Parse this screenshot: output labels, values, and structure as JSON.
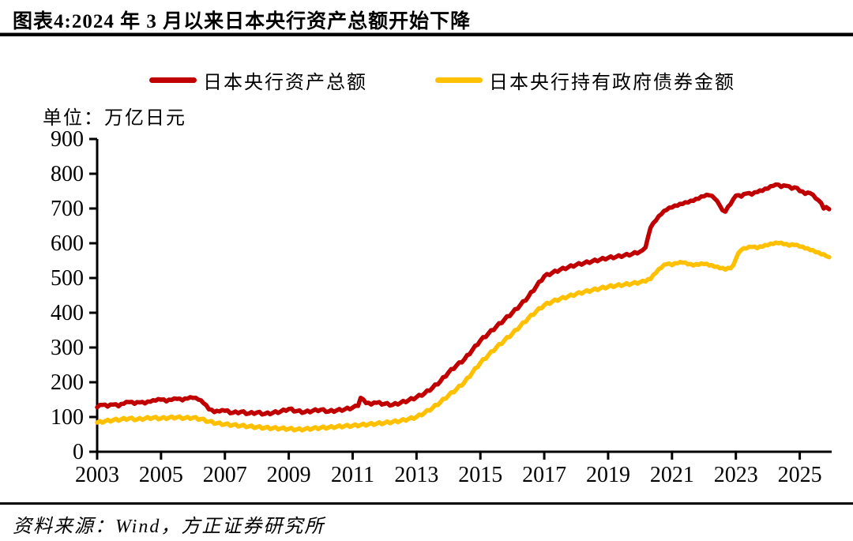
{
  "header": {
    "title": "图表4:2024 年 3 月以来日本央行资产总额开始下降"
  },
  "unit_label": "单位：万亿日元",
  "legend": {
    "items": [
      {
        "label": "日本央行资产总额",
        "color": "#C00000"
      },
      {
        "label": "日本央行持有政府债券金额",
        "color": "#FFC000"
      }
    ]
  },
  "footer": {
    "source": "资料来源：Wind，方正证券研究所"
  },
  "chart_data": {
    "type": "line",
    "title": "图表4:2024 年 3 月以来日本央行资产总额开始下降",
    "xlabel": "",
    "ylabel": "单位：万亿日元",
    "unit": "万亿日元",
    "grid": false,
    "legend_position": "top",
    "ylim": [
      0,
      900
    ],
    "yticks": [
      0,
      100,
      200,
      300,
      400,
      500,
      600,
      700,
      800,
      900
    ],
    "x_range": [
      2003,
      2026
    ],
    "xtick_values": [
      2003,
      2005,
      2007,
      2009,
      2011,
      2013,
      2015,
      2017,
      2019,
      2021,
      2023,
      2025
    ],
    "xtick_labels": [
      "2003",
      "2005",
      "2007",
      "2009",
      "2011",
      "2013",
      "2015",
      "2017",
      "2019",
      "2021",
      "2023",
      "2025"
    ],
    "series": [
      {
        "name": "日本央行资产总额",
        "color": "#C00000",
        "points": [
          [
            2003.0,
            128
          ],
          [
            2003.17,
            135
          ],
          [
            2003.33,
            130
          ],
          [
            2003.5,
            136
          ],
          [
            2003.67,
            131
          ],
          [
            2003.83,
            138
          ],
          [
            2004.0,
            143
          ],
          [
            2004.17,
            138
          ],
          [
            2004.33,
            142
          ],
          [
            2004.5,
            139
          ],
          [
            2004.67,
            144
          ],
          [
            2004.83,
            147
          ],
          [
            2005.0,
            150
          ],
          [
            2005.17,
            145
          ],
          [
            2005.33,
            149
          ],
          [
            2005.5,
            152
          ],
          [
            2005.67,
            148
          ],
          [
            2005.83,
            153
          ],
          [
            2006.0,
            155
          ],
          [
            2006.17,
            150
          ],
          [
            2006.33,
            140
          ],
          [
            2006.5,
            122
          ],
          [
            2006.67,
            114
          ],
          [
            2006.83,
            116
          ],
          [
            2007.0,
            118
          ],
          [
            2007.25,
            112
          ],
          [
            2007.5,
            115
          ],
          [
            2007.75,
            110
          ],
          [
            2008.0,
            113
          ],
          [
            2008.25,
            109
          ],
          [
            2008.5,
            112
          ],
          [
            2008.75,
            116
          ],
          [
            2009.0,
            123
          ],
          [
            2009.25,
            117
          ],
          [
            2009.5,
            114
          ],
          [
            2009.75,
            118
          ],
          [
            2010.0,
            121
          ],
          [
            2010.25,
            116
          ],
          [
            2010.5,
            119
          ],
          [
            2010.75,
            122
          ],
          [
            2011.0,
            127
          ],
          [
            2011.17,
            132
          ],
          [
            2011.25,
            155
          ],
          [
            2011.42,
            140
          ],
          [
            2011.58,
            136
          ],
          [
            2011.75,
            141
          ],
          [
            2012.0,
            138
          ],
          [
            2012.25,
            135
          ],
          [
            2012.5,
            141
          ],
          [
            2012.75,
            148
          ],
          [
            2013.0,
            157
          ],
          [
            2013.25,
            168
          ],
          [
            2013.5,
            184
          ],
          [
            2013.75,
            203
          ],
          [
            2014.0,
            228
          ],
          [
            2014.25,
            248
          ],
          [
            2014.5,
            266
          ],
          [
            2014.75,
            293
          ],
          [
            2015.0,
            320
          ],
          [
            2015.25,
            340
          ],
          [
            2015.5,
            360
          ],
          [
            2015.75,
            380
          ],
          [
            2016.0,
            400
          ],
          [
            2016.25,
            422
          ],
          [
            2016.5,
            446
          ],
          [
            2016.75,
            476
          ],
          [
            2017.0,
            505
          ],
          [
            2017.25,
            515
          ],
          [
            2017.5,
            524
          ],
          [
            2017.75,
            531
          ],
          [
            2018.0,
            538
          ],
          [
            2018.25,
            543
          ],
          [
            2018.5,
            548
          ],
          [
            2018.75,
            553
          ],
          [
            2019.0,
            558
          ],
          [
            2019.25,
            561
          ],
          [
            2019.5,
            565
          ],
          [
            2019.75,
            569
          ],
          [
            2020.0,
            576
          ],
          [
            2020.08,
            580
          ],
          [
            2020.17,
            588
          ],
          [
            2020.25,
            618
          ],
          [
            2020.33,
            645
          ],
          [
            2020.5,
            666
          ],
          [
            2020.67,
            684
          ],
          [
            2020.83,
            696
          ],
          [
            2021.0,
            703
          ],
          [
            2021.17,
            708
          ],
          [
            2021.33,
            713
          ],
          [
            2021.5,
            717
          ],
          [
            2021.67,
            722
          ],
          [
            2021.83,
            728
          ],
          [
            2022.0,
            735
          ],
          [
            2022.17,
            738
          ],
          [
            2022.33,
            729
          ],
          [
            2022.5,
            708
          ],
          [
            2022.58,
            695
          ],
          [
            2022.67,
            691
          ],
          [
            2022.83,
            712
          ],
          [
            2022.92,
            727
          ],
          [
            2023.0,
            737
          ],
          [
            2023.17,
            734
          ],
          [
            2023.33,
            743
          ],
          [
            2023.5,
            740
          ],
          [
            2023.67,
            747
          ],
          [
            2023.83,
            751
          ],
          [
            2024.0,
            757
          ],
          [
            2024.17,
            765
          ],
          [
            2024.25,
            769
          ],
          [
            2024.42,
            762
          ],
          [
            2024.58,
            765
          ],
          [
            2024.75,
            757
          ],
          [
            2024.92,
            759
          ],
          [
            2025.0,
            750
          ],
          [
            2025.17,
            742
          ],
          [
            2025.33,
            744
          ],
          [
            2025.5,
            729
          ],
          [
            2025.58,
            724
          ],
          [
            2025.67,
            716
          ],
          [
            2025.75,
            700
          ],
          [
            2025.83,
            704
          ],
          [
            2025.92,
            698
          ]
        ]
      },
      {
        "name": "日本央行持有政府债券金额",
        "color": "#FFC000",
        "points": [
          [
            2003.0,
            84
          ],
          [
            2003.25,
            88
          ],
          [
            2003.5,
            91
          ],
          [
            2003.75,
            93
          ],
          [
            2004.0,
            96
          ],
          [
            2004.25,
            93
          ],
          [
            2004.5,
            96
          ],
          [
            2004.75,
            98
          ],
          [
            2005.0,
            96
          ],
          [
            2005.25,
            98
          ],
          [
            2005.5,
            99
          ],
          [
            2005.75,
            97
          ],
          [
            2006.0,
            98
          ],
          [
            2006.25,
            94
          ],
          [
            2006.5,
            87
          ],
          [
            2006.75,
            82
          ],
          [
            2007.0,
            79
          ],
          [
            2007.25,
            77
          ],
          [
            2007.5,
            75
          ],
          [
            2007.75,
            73
          ],
          [
            2008.0,
            71
          ],
          [
            2008.25,
            69
          ],
          [
            2008.5,
            68
          ],
          [
            2008.75,
            67
          ],
          [
            2009.0,
            66
          ],
          [
            2009.25,
            64
          ],
          [
            2009.5,
            65
          ],
          [
            2009.75,
            67
          ],
          [
            2010.0,
            69
          ],
          [
            2010.25,
            70
          ],
          [
            2010.5,
            72
          ],
          [
            2010.75,
            74
          ],
          [
            2011.0,
            75
          ],
          [
            2011.25,
            77
          ],
          [
            2011.5,
            79
          ],
          [
            2011.75,
            81
          ],
          [
            2012.0,
            83
          ],
          [
            2012.25,
            86
          ],
          [
            2012.5,
            89
          ],
          [
            2012.75,
            94
          ],
          [
            2013.0,
            100
          ],
          [
            2013.25,
            112
          ],
          [
            2013.5,
            126
          ],
          [
            2013.75,
            143
          ],
          [
            2014.0,
            162
          ],
          [
            2014.25,
            180
          ],
          [
            2014.5,
            200
          ],
          [
            2014.75,
            228
          ],
          [
            2015.0,
            256
          ],
          [
            2015.25,
            278
          ],
          [
            2015.5,
            300
          ],
          [
            2015.75,
            320
          ],
          [
            2016.0,
            340
          ],
          [
            2016.25,
            362
          ],
          [
            2016.5,
            384
          ],
          [
            2016.75,
            404
          ],
          [
            2017.0,
            422
          ],
          [
            2017.25,
            432
          ],
          [
            2017.5,
            440
          ],
          [
            2017.75,
            447
          ],
          [
            2018.0,
            454
          ],
          [
            2018.25,
            460
          ],
          [
            2018.5,
            465
          ],
          [
            2018.75,
            470
          ],
          [
            2019.0,
            475
          ],
          [
            2019.25,
            478
          ],
          [
            2019.5,
            481
          ],
          [
            2019.75,
            484
          ],
          [
            2020.0,
            488
          ],
          [
            2020.17,
            490
          ],
          [
            2020.33,
            497
          ],
          [
            2020.5,
            515
          ],
          [
            2020.67,
            530
          ],
          [
            2020.83,
            540
          ],
          [
            2021.0,
            537
          ],
          [
            2021.17,
            542
          ],
          [
            2021.33,
            544
          ],
          [
            2021.5,
            539
          ],
          [
            2021.67,
            536
          ],
          [
            2021.83,
            538
          ],
          [
            2022.0,
            540
          ],
          [
            2022.17,
            536
          ],
          [
            2022.33,
            532
          ],
          [
            2022.5,
            528
          ],
          [
            2022.67,
            524
          ],
          [
            2022.83,
            528
          ],
          [
            2022.92,
            537
          ],
          [
            2023.0,
            555
          ],
          [
            2023.08,
            572
          ],
          [
            2023.17,
            581
          ],
          [
            2023.33,
            585
          ],
          [
            2023.5,
            589
          ],
          [
            2023.67,
            586
          ],
          [
            2023.83,
            590
          ],
          [
            2024.0,
            594
          ],
          [
            2024.17,
            598
          ],
          [
            2024.33,
            600
          ],
          [
            2024.5,
            597
          ],
          [
            2024.67,
            593
          ],
          [
            2024.83,
            595
          ],
          [
            2025.0,
            590
          ],
          [
            2025.17,
            585
          ],
          [
            2025.33,
            580
          ],
          [
            2025.5,
            574
          ],
          [
            2025.67,
            568
          ],
          [
            2025.83,
            563
          ],
          [
            2025.92,
            560
          ]
        ]
      }
    ]
  }
}
